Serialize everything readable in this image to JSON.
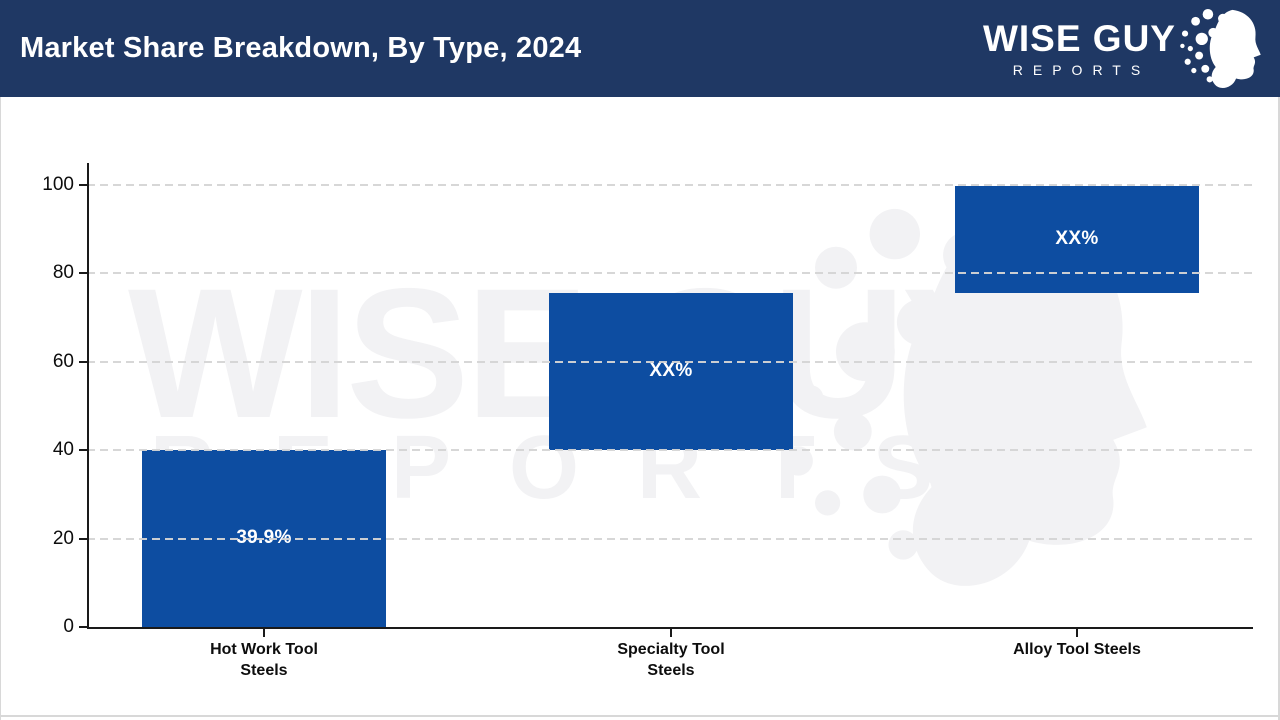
{
  "header": {
    "title": "Market Share Breakdown, By Type, 2024",
    "logo": {
      "line1": "WISE GUY",
      "line2": "REPORTS"
    }
  },
  "watermark": {
    "line1": "WISE GUY",
    "line2": "REPORTS"
  },
  "chart_data": {
    "type": "bar",
    "subtype": "waterfall-breakdown",
    "title": "Market Share Breakdown, By Type, 2024",
    "categories": [
      "Hot Work Tool Steels",
      "Specialty Tool Steels",
      "Alloy Tool Steels"
    ],
    "categories_display": [
      "Hot Work Tool\nSteels",
      "Specialty Tool\nSteels",
      "Alloy Tool Steels"
    ],
    "segments": [
      {
        "category": "Hot Work Tool Steels",
        "start": 0,
        "end": 40,
        "label": "39.9%"
      },
      {
        "category": "Specialty Tool Steels",
        "start": 40,
        "end": 75.5,
        "label": "XX%"
      },
      {
        "category": "Alloy Tool Steels",
        "start": 75.5,
        "end": 99.7,
        "label": "XX%"
      }
    ],
    "ylim": [
      0,
      100
    ],
    "yticks": [
      0,
      20,
      40,
      60,
      80,
      100
    ],
    "grid": "dashed horizontal, drawn over bars",
    "legend": "none",
    "bar_color": "#0D4DA1",
    "bar_label_color": "#FFFFFF",
    "header_color": "#1F3864",
    "axis_color": "#1A1A1A",
    "gridline_color": "#D5D5D5",
    "watermark_color": "#F2F2F4"
  }
}
